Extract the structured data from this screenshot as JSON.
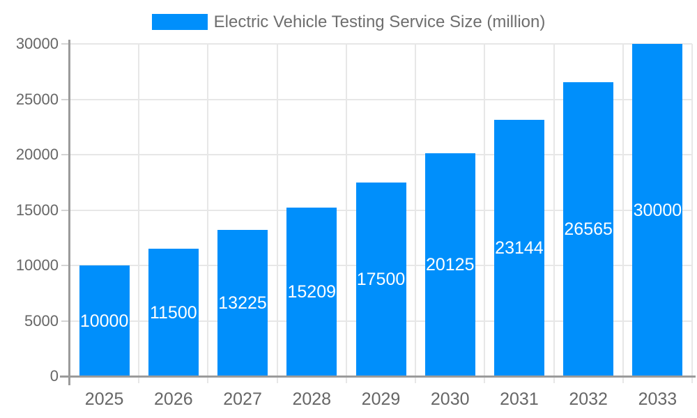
{
  "chart_data": {
    "type": "bar",
    "title": "Electric Vehicle Testing Service Size (million)",
    "categories": [
      "2025",
      "2026",
      "2027",
      "2028",
      "2029",
      "2030",
      "2031",
      "2032",
      "2033"
    ],
    "values": [
      10000,
      11500,
      13225,
      15209,
      17500,
      20125,
      23144,
      26565,
      30000
    ],
    "data_labels_shown": true,
    "xlabel": "",
    "ylabel": "",
    "ylim": [
      0,
      30000
    ],
    "yticks": [
      0,
      5000,
      10000,
      15000,
      20000,
      25000,
      30000
    ],
    "grid": true,
    "legend_position": "top",
    "colors": {
      "bar": "#008FFB",
      "bar_label_text": "#ffffff",
      "axis_text": "#666666",
      "legend_text": "#6e6e6e",
      "gridline": "#e7e7e7",
      "tick": "#d4d4d4",
      "axis_line": "#9b9b9b",
      "background": "#ffffff"
    }
  }
}
